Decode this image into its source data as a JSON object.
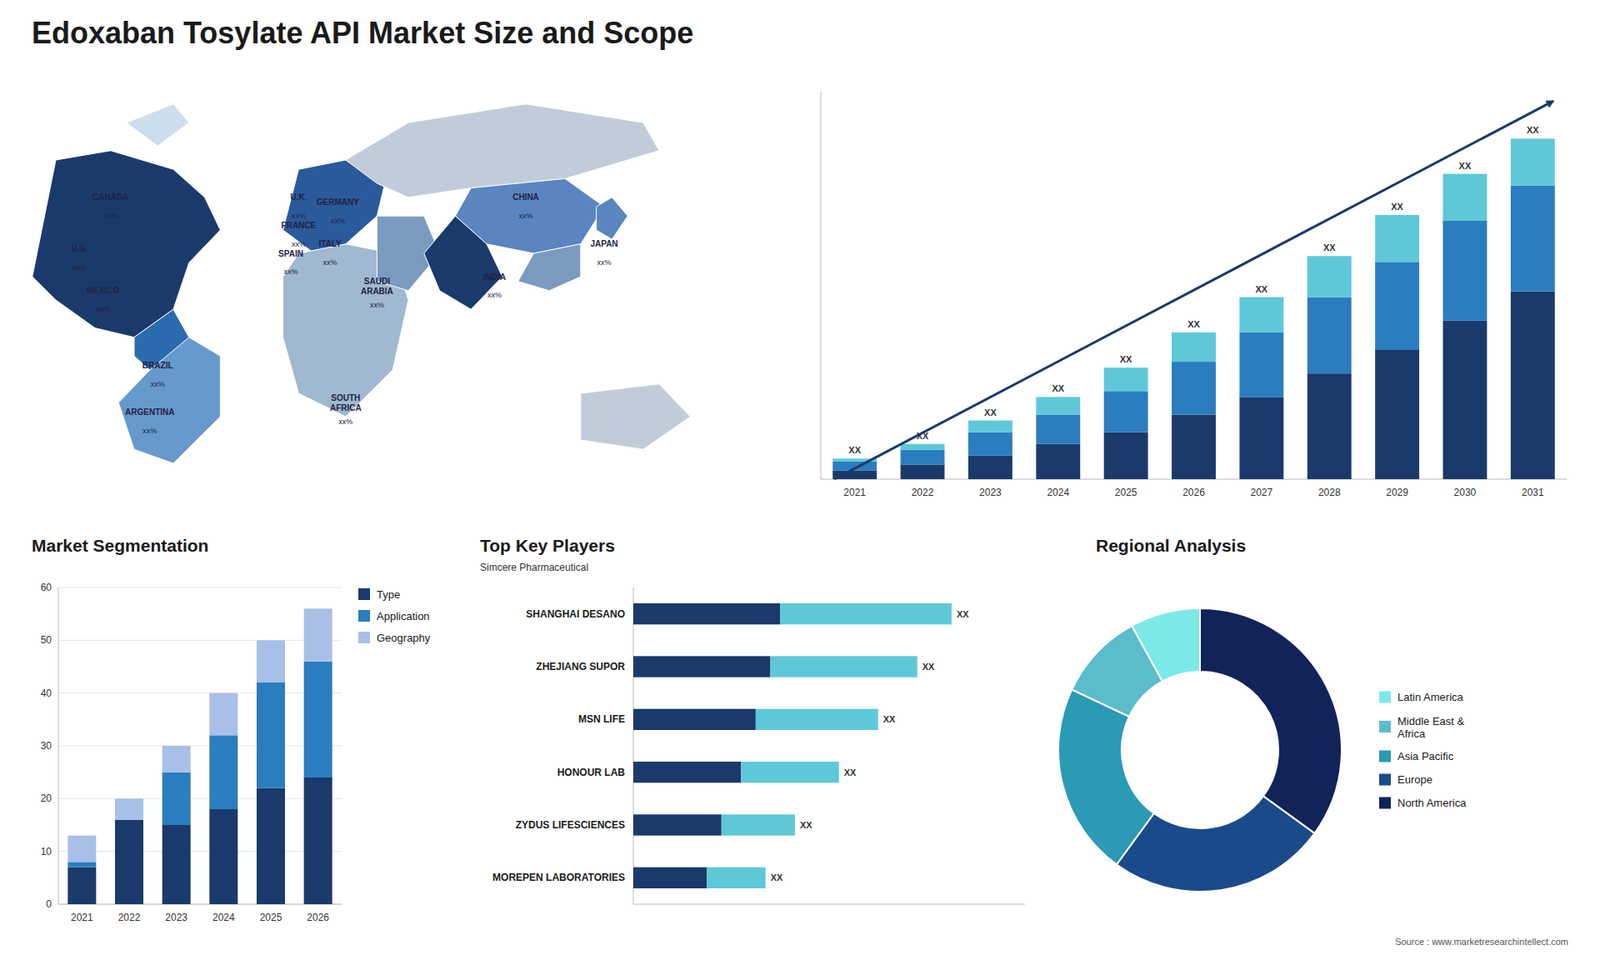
{
  "chart_data": [
    {
      "type": "bar",
      "title": "Edoxaban Tosylate API Market Size and Scope",
      "categories": [
        "2021",
        "2022",
        "2023",
        "2024",
        "2025",
        "2026",
        "2027",
        "2028",
        "2029",
        "2030",
        "2031"
      ],
      "series": [
        {
          "color": "#1a3a6b",
          "values": [
            1.5,
            2.5,
            4,
            6,
            8,
            11,
            14,
            18,
            22,
            27,
            32
          ]
        },
        {
          "color": "#2a7dbf",
          "values": [
            1.5,
            2.5,
            4,
            5,
            7,
            9,
            11,
            13,
            15,
            17,
            18
          ]
        },
        {
          "color": "#5ec8d8",
          "values": [
            0.5,
            1.0,
            2,
            3,
            4,
            5,
            6,
            7,
            8,
            8,
            8
          ],
          "value_labels": [
            "XX",
            "XX",
            "XX",
            "XX",
            "XX",
            "XX",
            "XX",
            "XX",
            "XX",
            "XX",
            "XX"
          ]
        }
      ],
      "stacked": true,
      "ylim": [
        0,
        66
      ],
      "yticks": [],
      "tick_labels": "x"
    },
    {
      "type": "bar",
      "title": "Market Segmentation",
      "categories": [
        "2021",
        "2022",
        "2023",
        "2024",
        "2025",
        "2026"
      ],
      "series": [
        {
          "name": "Type",
          "color": "#1a3a6b",
          "values": [
            7,
            16,
            15,
            18,
            22,
            24
          ]
        },
        {
          "name": "Application",
          "color": "#2a7dbf",
          "values": [
            1,
            0,
            10,
            14,
            20,
            22
          ]
        },
        {
          "name": "Geography",
          "color": "#a8c0e8",
          "values": [
            5,
            4,
            5,
            8,
            8,
            10
          ]
        }
      ],
      "stacked": true,
      "ylim": [
        0,
        60
      ],
      "yticks": [
        0,
        10,
        20,
        30,
        40,
        50,
        60
      ],
      "grid": true,
      "legend": "right"
    },
    {
      "type": "bar",
      "orientation": "horizontal",
      "title": "Top Key Players",
      "subtitle": "Simcere Pharmaceutical",
      "categories": [
        "SHANGHAI DESANO",
        "ZHEJIANG SUPOR",
        "MSN LIFE",
        "HONOUR LAB",
        "ZYDUS LIFESCIENCES",
        "MOREPEN LABORATORIES"
      ],
      "series": [
        {
          "color": "#1a3a6b",
          "values": [
            3.0,
            2.8,
            2.5,
            2.2,
            1.8,
            1.5
          ]
        },
        {
          "color": "#5ec8d8",
          "values": [
            3.5,
            3.0,
            2.5,
            2.0,
            1.5,
            1.2
          ],
          "value_labels": [
            "XX",
            "XX",
            "XX",
            "XX",
            "XX",
            "XX"
          ]
        }
      ],
      "stacked": true,
      "xlim": [
        0,
        8
      ],
      "xticks": [],
      "tick_labels": "y"
    },
    {
      "type": "donut",
      "title": "Regional Analysis",
      "categories": [
        "Latin America",
        "Middle East &\nAfrica",
        "Asia Pacific",
        "Europe",
        "North America"
      ],
      "values": [
        8,
        10,
        22,
        25,
        35
      ],
      "colors": [
        "#7de8e8",
        "#5bbccc",
        "#2a9ab5",
        "#1a4a8a",
        "#12235a"
      ],
      "legend": "right",
      "annotations": [
        "Source : www.marketresearchintellect.com"
      ]
    },
    {
      "type": "map",
      "labels": [
        "CANADA",
        "U.S.",
        "MEXICO",
        "BRAZIL",
        "ARGENTINA",
        "U.K.",
        "FRANCE",
        "SPAIN",
        "GERMANY",
        "ITALY",
        "SAUDI\nARABIA",
        "SOUTH\nAFRICA",
        "CHINA",
        "INDIA",
        "JAPAN"
      ],
      "annotations": [
        "xx%",
        "xx%",
        "xx%",
        "xx%",
        "xx%",
        "xx%",
        "xx%",
        "xx%",
        "xx%",
        "xx%",
        "xx%",
        "xx%",
        "xx%",
        "xx%",
        "xx%"
      ]
    }
  ]
}
